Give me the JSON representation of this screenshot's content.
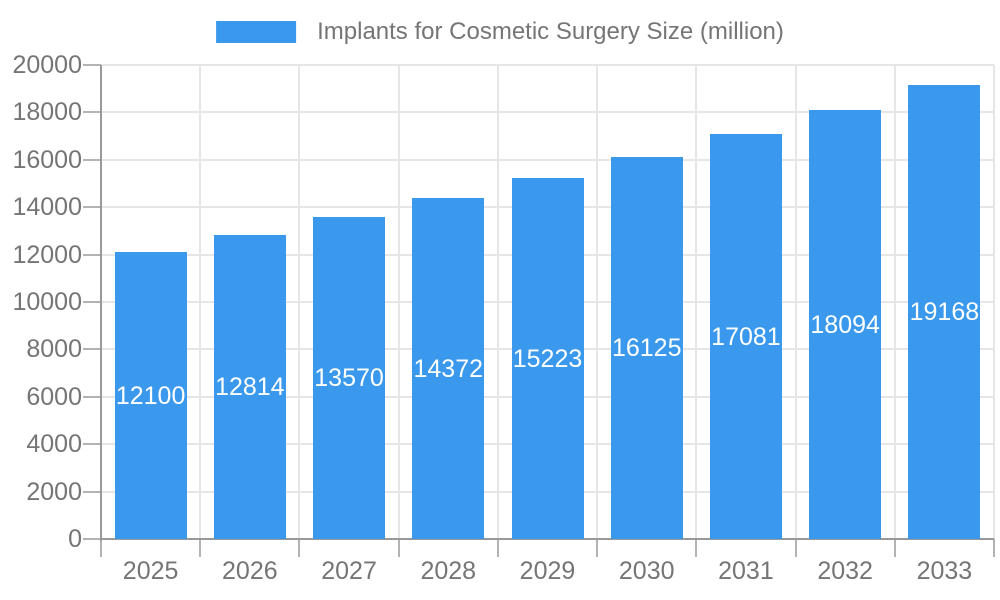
{
  "legend": {
    "label": "Implants for Cosmetic Surgery Size (million)"
  },
  "chart_data": {
    "type": "bar",
    "title": "Implants for Cosmetic Surgery Size (million)",
    "categories": [
      "2025",
      "2026",
      "2027",
      "2028",
      "2029",
      "2030",
      "2031",
      "2032",
      "2033"
    ],
    "values": [
      12100,
      12814,
      13570,
      14372,
      15223,
      16125,
      17081,
      18094,
      19168
    ],
    "xlabel": "",
    "ylabel": "",
    "ylim": [
      0,
      20000
    ],
    "yticks": [
      0,
      2000,
      4000,
      6000,
      8000,
      10000,
      12000,
      14000,
      16000,
      18000,
      20000
    ],
    "grid": true,
    "legend_position": "top-center",
    "value_labels": "inside-center",
    "colors": {
      "bar": "#3A99EC",
      "gridline": "#E6E6E6",
      "axis_line": "#999999",
      "tick": "#B3B3B3",
      "axis_text": "#757575",
      "bar_label_text": "#FFFFFF",
      "background": "#FFFFFF"
    }
  }
}
